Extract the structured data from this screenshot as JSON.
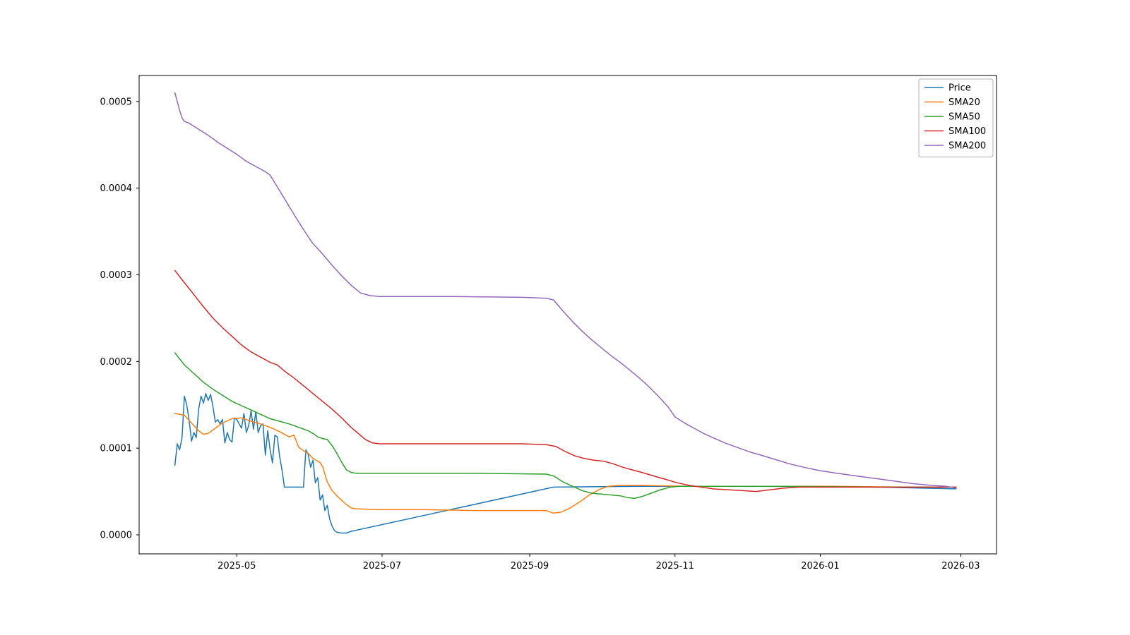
{
  "figure": {
    "background": "#ffffff",
    "frame_color": "#000000",
    "tick_color": "#000000",
    "legend_border_color": "#b0b0b0",
    "legend_background": "#ffffff"
  },
  "chart_data": {
    "type": "line",
    "title": "",
    "xlabel": "",
    "ylabel": "",
    "grid": false,
    "legend_position": "upper right",
    "x_unit": "days since 2025-04-01",
    "xlim": [
      -11,
      349
    ],
    "ylim": [
      -2.2e-05,
      0.00053
    ],
    "x_ticks": [
      {
        "pos": 30,
        "label": "2025-05"
      },
      {
        "pos": 91,
        "label": "2025-07"
      },
      {
        "pos": 153,
        "label": "2025-09"
      },
      {
        "pos": 214,
        "label": "2025-11"
      },
      {
        "pos": 275,
        "label": "2026-01"
      },
      {
        "pos": 334,
        "label": "2026-03"
      }
    ],
    "y_ticks": [
      {
        "pos": 0.0,
        "label": "0.0000"
      },
      {
        "pos": 0.0001,
        "label": "0.0001"
      },
      {
        "pos": 0.0002,
        "label": "0.0002"
      },
      {
        "pos": 0.0003,
        "label": "0.0003"
      },
      {
        "pos": 0.0004,
        "label": "0.0004"
      },
      {
        "pos": 0.0005,
        "label": "0.0005"
      }
    ],
    "series": [
      {
        "name": "Price",
        "color": "#1f77b4",
        "points": [
          [
            4,
            8e-05
          ],
          [
            5,
            0.000105
          ],
          [
            6,
            9.8e-05
          ],
          [
            7,
            0.000112
          ],
          [
            8,
            0.00016
          ],
          [
            9,
            0.00015
          ],
          [
            10,
            0.000132
          ],
          [
            11,
            0.000108
          ],
          [
            12,
            0.000118
          ],
          [
            13,
            0.000112
          ],
          [
            14,
            0.000145
          ],
          [
            15,
            0.00016
          ],
          [
            16,
            0.000152
          ],
          [
            17,
            0.000163
          ],
          [
            18,
            0.000155
          ],
          [
            19,
            0.000162
          ],
          [
            20,
            0.000148
          ],
          [
            21,
            0.00013
          ],
          [
            22,
            0.000133
          ],
          [
            23,
            0.000128
          ],
          [
            24,
            0.000133
          ],
          [
            25,
            0.000106
          ],
          [
            26,
            0.000118
          ],
          [
            27,
            0.00011
          ],
          [
            28,
            0.000107
          ],
          [
            29,
            0.000135
          ],
          [
            30,
            0.000133
          ],
          [
            31,
            0.000128
          ],
          [
            32,
            0.000123
          ],
          [
            33,
            0.00014
          ],
          [
            34,
            0.000118
          ],
          [
            35,
            0.000126
          ],
          [
            36,
            0.000143
          ],
          [
            37,
            0.000122
          ],
          [
            38,
            0.000142
          ],
          [
            39,
            0.000118
          ],
          [
            40,
            0.000126
          ],
          [
            41,
            0.000128
          ],
          [
            42,
            9.2e-05
          ],
          [
            43,
            0.00012
          ],
          [
            44,
            9.8e-05
          ],
          [
            45,
            8.3e-05
          ],
          [
            46,
            0.000115
          ],
          [
            47,
            0.000113
          ],
          [
            48,
            9e-05
          ],
          [
            49,
            7.5e-05
          ],
          [
            50,
            5.5e-05
          ],
          [
            52,
            5.5e-05
          ],
          [
            54,
            5.5e-05
          ],
          [
            56,
            5.5e-05
          ],
          [
            58,
            5.5e-05
          ],
          [
            59,
            9.8e-05
          ],
          [
            60,
            9.3e-05
          ],
          [
            61,
            7.8e-05
          ],
          [
            62,
            8.6e-05
          ],
          [
            63,
            6e-05
          ],
          [
            64,
            6.6e-05
          ],
          [
            65,
            4e-05
          ],
          [
            66,
            4.6e-05
          ],
          [
            67,
            2.8e-05
          ],
          [
            68,
            3.4e-05
          ],
          [
            69,
            1.8e-05
          ],
          [
            70,
            1e-05
          ],
          [
            71,
            5e-06
          ],
          [
            72,
            3e-06
          ],
          [
            74,
            2e-06
          ],
          [
            76,
            2e-06
          ],
          [
            78,
            4e-06
          ],
          [
            163,
            5.5e-05
          ],
          [
            200,
            5.6e-05
          ],
          [
            250,
            5.6e-05
          ],
          [
            300,
            5.5e-05
          ],
          [
            332,
            5.3e-05
          ]
        ]
      },
      {
        "name": "SMA20",
        "color": "#ff7f0e",
        "points": [
          [
            4,
            0.00014
          ],
          [
            8,
            0.000138
          ],
          [
            12,
            0.000126
          ],
          [
            14,
            0.00012
          ],
          [
            16,
            0.000116
          ],
          [
            18,
            0.000117
          ],
          [
            20,
            0.000121
          ],
          [
            24,
            0.000129
          ],
          [
            28,
            0.000134
          ],
          [
            32,
            0.000135
          ],
          [
            36,
            0.000131
          ],
          [
            40,
            0.000128
          ],
          [
            44,
            0.000124
          ],
          [
            48,
            0.000119
          ],
          [
            52,
            0.000113
          ],
          [
            54,
            0.000115
          ],
          [
            56,
            0.000101
          ],
          [
            58,
            9.7e-05
          ],
          [
            60,
            9.4e-05
          ],
          [
            62,
            8.8e-05
          ],
          [
            64,
            8.5e-05
          ],
          [
            65,
            8.3e-05
          ],
          [
            66,
            7.9e-05
          ],
          [
            68,
            6.1e-05
          ],
          [
            70,
            5.1e-05
          ],
          [
            72,
            4.5e-05
          ],
          [
            74,
            4e-05
          ],
          [
            76,
            3.5e-05
          ],
          [
            78,
            3.1e-05
          ],
          [
            80,
            3e-05
          ],
          [
            90,
            2.9e-05
          ],
          [
            110,
            2.9e-05
          ],
          [
            130,
            2.8e-05
          ],
          [
            150,
            2.8e-05
          ],
          [
            160,
            2.8e-05
          ],
          [
            163,
            2.5e-05
          ],
          [
            166,
            2.6e-05
          ],
          [
            170,
            3.1e-05
          ],
          [
            174,
            3.8e-05
          ],
          [
            178,
            4.6e-05
          ],
          [
            182,
            5.2e-05
          ],
          [
            186,
            5.6e-05
          ],
          [
            190,
            5.7e-05
          ],
          [
            200,
            5.7e-05
          ],
          [
            220,
            5.6e-05
          ],
          [
            250,
            5.6e-05
          ],
          [
            280,
            5.6e-05
          ],
          [
            310,
            5.5e-05
          ],
          [
            332,
            5.5e-05
          ]
        ]
      },
      {
        "name": "SMA50",
        "color": "#2ca02c",
        "points": [
          [
            4,
            0.00021
          ],
          [
            8,
            0.000196
          ],
          [
            12,
            0.000186
          ],
          [
            16,
            0.000176
          ],
          [
            20,
            0.000168
          ],
          [
            24,
            0.000161
          ],
          [
            28,
            0.000154
          ],
          [
            32,
            0.000149
          ],
          [
            36,
            0.000144
          ],
          [
            40,
            0.000139
          ],
          [
            44,
            0.000134
          ],
          [
            48,
            0.000131
          ],
          [
            52,
            0.000128
          ],
          [
            56,
            0.000124
          ],
          [
            60,
            0.00012
          ],
          [
            62,
            0.000117
          ],
          [
            64,
            0.000113
          ],
          [
            66,
            0.000111
          ],
          [
            68,
            0.00011
          ],
          [
            70,
            0.000103
          ],
          [
            72,
            9.4e-05
          ],
          [
            74,
            8.4e-05
          ],
          [
            76,
            7.5e-05
          ],
          [
            78,
            7.2e-05
          ],
          [
            80,
            7.1e-05
          ],
          [
            100,
            7.1e-05
          ],
          [
            130,
            7.1e-05
          ],
          [
            160,
            7e-05
          ],
          [
            163,
            6.8e-05
          ],
          [
            167,
            6.1e-05
          ],
          [
            171,
            5.6e-05
          ],
          [
            175,
            5.1e-05
          ],
          [
            179,
            4.8e-05
          ],
          [
            183,
            4.7e-05
          ],
          [
            187,
            4.6e-05
          ],
          [
            191,
            4.5e-05
          ],
          [
            194,
            4.3e-05
          ],
          [
            197,
            4.2e-05
          ],
          [
            200,
            4.4e-05
          ],
          [
            204,
            4.8e-05
          ],
          [
            208,
            5.2e-05
          ],
          [
            212,
            5.5e-05
          ],
          [
            216,
            5.6e-05
          ],
          [
            230,
            5.6e-05
          ],
          [
            260,
            5.6e-05
          ],
          [
            300,
            5.5e-05
          ],
          [
            332,
            5.5e-05
          ]
        ]
      },
      {
        "name": "SMA100",
        "color": "#d62728",
        "points": [
          [
            4,
            0.000305
          ],
          [
            8,
            0.000291
          ],
          [
            12,
            0.000277
          ],
          [
            16,
            0.000263
          ],
          [
            20,
            0.00025
          ],
          [
            24,
            0.000239
          ],
          [
            28,
            0.000229
          ],
          [
            32,
            0.000219
          ],
          [
            36,
            0.000211
          ],
          [
            40,
            0.000205
          ],
          [
            44,
            0.000199
          ],
          [
            47,
            0.000196
          ],
          [
            50,
            0.000189
          ],
          [
            54,
            0.000181
          ],
          [
            58,
            0.000172
          ],
          [
            62,
            0.000163
          ],
          [
            66,
            0.000154
          ],
          [
            70,
            0.000145
          ],
          [
            74,
            0.000135
          ],
          [
            78,
            0.000124
          ],
          [
            81,
            0.000117
          ],
          [
            84,
            0.00011
          ],
          [
            87,
            0.000106
          ],
          [
            90,
            0.000105
          ],
          [
            120,
            0.000105
          ],
          [
            150,
            0.000105
          ],
          [
            160,
            0.000104
          ],
          [
            164,
            0.000102
          ],
          [
            168,
            9.6e-05
          ],
          [
            172,
            9.1e-05
          ],
          [
            176,
            8.8e-05
          ],
          [
            180,
            8.6e-05
          ],
          [
            184,
            8.5e-05
          ],
          [
            188,
            8.2e-05
          ],
          [
            192,
            7.8e-05
          ],
          [
            196,
            7.5e-05
          ],
          [
            200,
            7.2e-05
          ],
          [
            205,
            6.8e-05
          ],
          [
            210,
            6.4e-05
          ],
          [
            215,
            6e-05
          ],
          [
            220,
            5.7e-05
          ],
          [
            225,
            5.5e-05
          ],
          [
            230,
            5.3e-05
          ],
          [
            236,
            5.2e-05
          ],
          [
            242,
            5.1e-05
          ],
          [
            248,
            5e-05
          ],
          [
            254,
            5.2e-05
          ],
          [
            260,
            5.4e-05
          ],
          [
            266,
            5.5e-05
          ],
          [
            280,
            5.5e-05
          ],
          [
            310,
            5.5e-05
          ],
          [
            332,
            5.5e-05
          ]
        ]
      },
      {
        "name": "SMA200",
        "color": "#9467bd",
        "points": [
          [
            4,
            0.00051
          ],
          [
            5,
            0.0005
          ],
          [
            6,
            0.00049
          ],
          [
            7,
            0.000481
          ],
          [
            8,
            0.000477
          ],
          [
            10,
            0.000475
          ],
          [
            14,
            0.000468
          ],
          [
            18,
            0.000461
          ],
          [
            22,
            0.000453
          ],
          [
            26,
            0.000446
          ],
          [
            30,
            0.000439
          ],
          [
            34,
            0.000431
          ],
          [
            38,
            0.000425
          ],
          [
            42,
            0.000419
          ],
          [
            44,
            0.000415
          ],
          [
            48,
            0.000397
          ],
          [
            52,
            0.000379
          ],
          [
            56,
            0.000361
          ],
          [
            60,
            0.000344
          ],
          [
            62,
            0.000336
          ],
          [
            66,
            0.000324
          ],
          [
            70,
            0.000311
          ],
          [
            74,
            0.000299
          ],
          [
            78,
            0.000288
          ],
          [
            82,
            0.000279
          ],
          [
            86,
            0.000276
          ],
          [
            90,
            0.000275
          ],
          [
            120,
            0.000275
          ],
          [
            150,
            0.000274
          ],
          [
            160,
            0.000273
          ],
          [
            163,
            0.000271
          ],
          [
            167,
            0.000258
          ],
          [
            171,
            0.000246
          ],
          [
            175,
            0.000235
          ],
          [
            179,
            0.000225
          ],
          [
            183,
            0.000216
          ],
          [
            187,
            0.000207
          ],
          [
            191,
            0.000199
          ],
          [
            195,
            0.00019
          ],
          [
            199,
            0.000181
          ],
          [
            203,
            0.000171
          ],
          [
            207,
            0.00016
          ],
          [
            211,
            0.000148
          ],
          [
            214,
            0.000136
          ],
          [
            218,
            0.000129
          ],
          [
            222,
            0.000123
          ],
          [
            226,
            0.000117
          ],
          [
            230,
            0.000112
          ],
          [
            235,
            0.000106
          ],
          [
            240,
            0.000101
          ],
          [
            245,
            9.6e-05
          ],
          [
            250,
            9.2e-05
          ],
          [
            256,
            8.7e-05
          ],
          [
            262,
            8.2e-05
          ],
          [
            268,
            7.8e-05
          ],
          [
            275,
            7.4e-05
          ],
          [
            282,
            7.1e-05
          ],
          [
            290,
            6.8e-05
          ],
          [
            298,
            6.5e-05
          ],
          [
            306,
            6.2e-05
          ],
          [
            314,
            5.9e-05
          ],
          [
            322,
            5.7e-05
          ],
          [
            328,
            5.6e-05
          ],
          [
            332,
            5.4e-05
          ]
        ]
      }
    ]
  }
}
